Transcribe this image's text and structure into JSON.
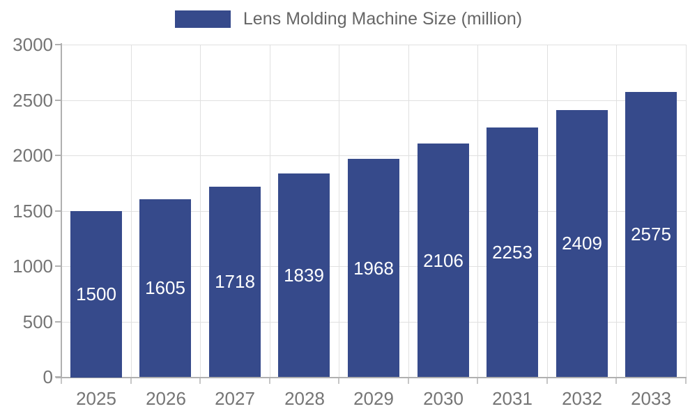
{
  "legend": {
    "label": "Lens Molding Machine Size (million)"
  },
  "colors": {
    "bar": "#364a8b",
    "grid": "#e0e0e0",
    "axis": "#b0b0b0",
    "x_tick": "#c6c6c6",
    "tick_label": "#757575",
    "legend_text": "#666666",
    "bar_label": "#ffffff",
    "background": "#ffffff"
  },
  "chart_data": {
    "type": "bar",
    "title": "Lens Molding Machine Size (million)",
    "categories": [
      "2025",
      "2026",
      "2027",
      "2028",
      "2029",
      "2030",
      "2031",
      "2032",
      "2033"
    ],
    "values": [
      1500,
      1605,
      1718,
      1839,
      1968,
      2106,
      2253,
      2409,
      2575
    ],
    "xlabel": "",
    "ylabel": "",
    "ylim": [
      0,
      3000
    ],
    "yticks": [
      0,
      500,
      1000,
      1500,
      2000,
      2500,
      3000
    ],
    "grid": true,
    "legend_position": "top-center",
    "value_label_position": "inside-center"
  }
}
